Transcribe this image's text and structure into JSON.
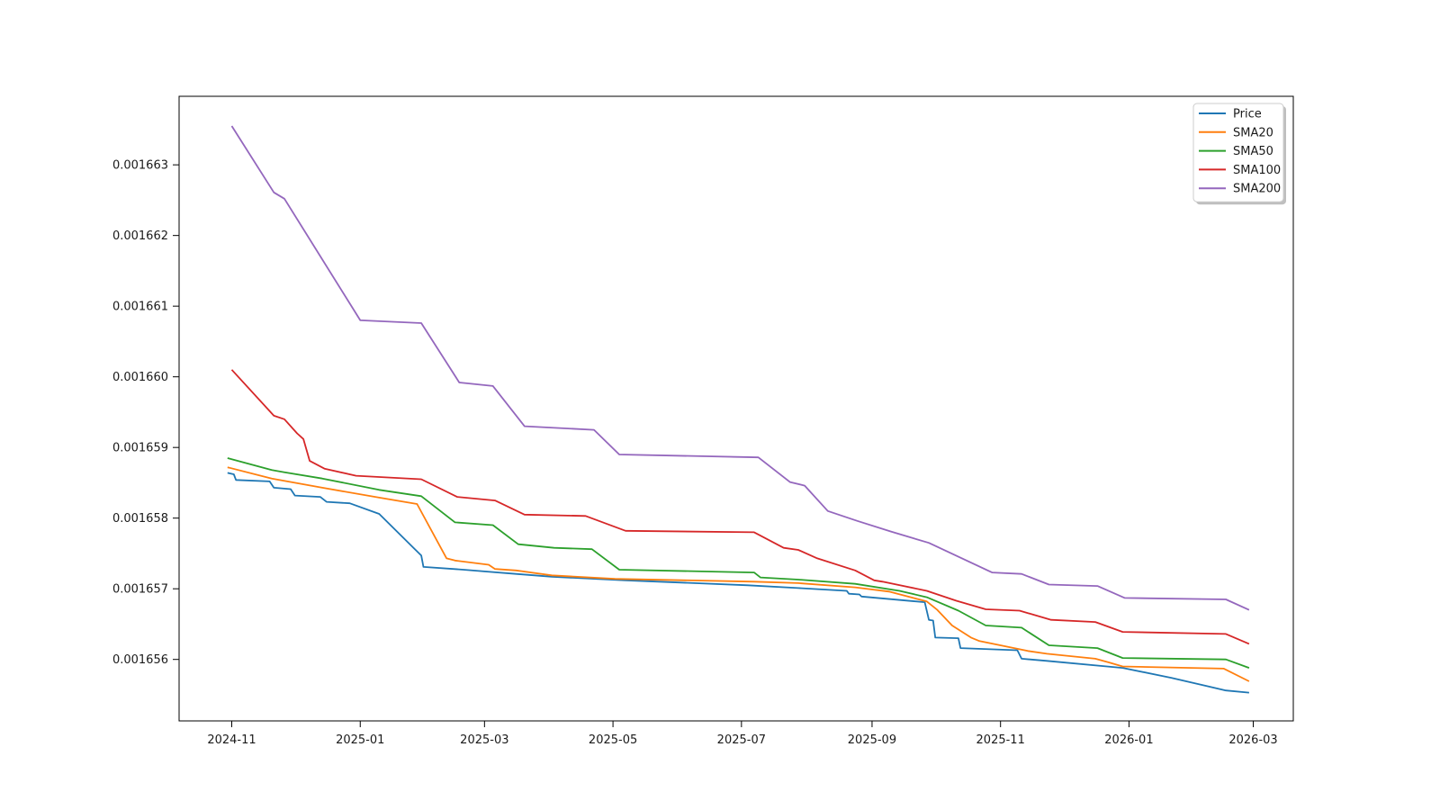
{
  "chart_data": {
    "type": "line",
    "title": "",
    "xlabel": "",
    "ylabel": "",
    "grid": false,
    "x_axis": {
      "range": [
        "2024-10-07",
        "2026-03-20"
      ],
      "tick_dates": [
        "2024-11-01",
        "2025-01-01",
        "2025-03-01",
        "2025-05-01",
        "2025-07-01",
        "2025-09-01",
        "2025-11-01",
        "2026-01-01",
        "2026-03-01"
      ],
      "tick_labels": [
        "2024-11",
        "2025-01",
        "2025-03",
        "2025-05",
        "2025-07",
        "2025-09",
        "2025-11",
        "2026-01",
        "2026-03"
      ]
    },
    "y_axis": {
      "range": [
        0.00165513,
        0.00166397
      ],
      "ticks": [
        0.001656,
        0.001657,
        0.001658,
        0.001659,
        0.00166,
        0.001661,
        0.001662,
        0.001663
      ],
      "decimals": 6
    },
    "legend": {
      "position": "upper-right",
      "border_color": "#cccccc",
      "shadow": true,
      "entries": [
        "Price",
        "SMA20",
        "SMA50",
        "SMA100",
        "SMA200"
      ]
    },
    "series": [
      {
        "name": "Price",
        "color": "#1f77b4",
        "points": [
          [
            "2024-10-30",
            0.00165864
          ],
          [
            "2024-11-02",
            0.00165862
          ],
          [
            "2024-11-03",
            0.00165854
          ],
          [
            "2024-11-19",
            0.00165852
          ],
          [
            "2024-11-21",
            0.00165843
          ],
          [
            "2024-11-29",
            0.00165841
          ],
          [
            "2024-12-01",
            0.00165832
          ],
          [
            "2024-12-13",
            0.0016583
          ],
          [
            "2024-12-16",
            0.00165823
          ],
          [
            "2024-12-27",
            0.00165821
          ],
          [
            "2025-01-10",
            0.00165806
          ],
          [
            "2025-01-28",
            0.00165753
          ],
          [
            "2025-01-30",
            0.00165747
          ],
          [
            "2025-01-31",
            0.00165731
          ],
          [
            "2025-02-19",
            0.00165727
          ],
          [
            "2025-03-16",
            0.00165721
          ],
          [
            "2025-04-02",
            0.00165717
          ],
          [
            "2025-05-07",
            0.00165712
          ],
          [
            "2025-07-04",
            0.00165705
          ],
          [
            "2025-07-28",
            0.00165701
          ],
          [
            "2025-08-20",
            0.00165697
          ],
          [
            "2025-08-21",
            0.00165693
          ],
          [
            "2025-08-26",
            0.00165692
          ],
          [
            "2025-08-27",
            0.00165689
          ],
          [
            "2025-09-26",
            0.00165681
          ],
          [
            "2025-09-28",
            0.00165656
          ],
          [
            "2025-09-30",
            0.00165655
          ],
          [
            "2025-10-01",
            0.00165631
          ],
          [
            "2025-10-12",
            0.0016563
          ],
          [
            "2025-10-13",
            0.00165616
          ],
          [
            "2025-11-09",
            0.00165613
          ],
          [
            "2025-11-11",
            0.00165601
          ],
          [
            "2025-11-23",
            0.00165598
          ],
          [
            "2025-12-29",
            0.00165588
          ],
          [
            "2026-01-21",
            0.00165574
          ],
          [
            "2026-02-16",
            0.00165556
          ],
          [
            "2026-02-27",
            0.00165553
          ]
        ]
      },
      {
        "name": "SMA20",
        "color": "#ff7f0e",
        "points": [
          [
            "2024-10-30",
            0.00165872
          ],
          [
            "2024-11-20",
            0.00165856
          ],
          [
            "2024-12-14",
            0.00165843
          ],
          [
            "2025-01-10",
            0.00165829
          ],
          [
            "2025-01-28",
            0.0016582
          ],
          [
            "2025-02-11",
            0.00165743
          ],
          [
            "2025-02-15",
            0.0016574
          ],
          [
            "2025-03-03",
            0.00165734
          ],
          [
            "2025-03-06",
            0.00165728
          ],
          [
            "2025-03-16",
            0.00165726
          ],
          [
            "2025-04-02",
            0.00165719
          ],
          [
            "2025-05-02",
            0.00165714
          ],
          [
            "2025-07-07",
            0.0016571
          ],
          [
            "2025-07-28",
            0.00165708
          ],
          [
            "2025-08-24",
            0.00165702
          ],
          [
            "2025-09-09",
            0.00165696
          ],
          [
            "2025-09-27",
            0.00165682
          ],
          [
            "2025-10-02",
            0.0016567
          ],
          [
            "2025-10-09",
            0.00165648
          ],
          [
            "2025-10-18",
            0.00165631
          ],
          [
            "2025-10-22",
            0.00165626
          ],
          [
            "2025-11-14",
            0.00165612
          ],
          [
            "2025-11-23",
            0.00165608
          ],
          [
            "2025-12-16",
            0.00165601
          ],
          [
            "2025-12-22",
            0.00165596
          ],
          [
            "2025-12-29",
            0.0016559
          ],
          [
            "2026-02-15",
            0.00165587
          ],
          [
            "2026-02-27",
            0.00165569
          ]
        ]
      },
      {
        "name": "SMA50",
        "color": "#2ca02c",
        "points": [
          [
            "2024-10-30",
            0.00165885
          ],
          [
            "2024-11-20",
            0.00165868
          ],
          [
            "2024-11-26",
            0.00165865
          ],
          [
            "2024-12-14",
            0.00165856
          ],
          [
            "2025-01-10",
            0.0016584
          ],
          [
            "2025-01-30",
            0.00165831
          ],
          [
            "2025-02-15",
            0.00165794
          ],
          [
            "2025-03-05",
            0.0016579
          ],
          [
            "2025-03-17",
            0.00165763
          ],
          [
            "2025-04-03",
            0.00165758
          ],
          [
            "2025-04-21",
            0.00165756
          ],
          [
            "2025-05-04",
            0.00165727
          ],
          [
            "2025-07-07",
            0.00165723
          ],
          [
            "2025-07-10",
            0.00165716
          ],
          [
            "2025-07-28",
            0.00165713
          ],
          [
            "2025-08-24",
            0.00165707
          ],
          [
            "2025-09-14",
            0.00165697
          ],
          [
            "2025-09-27",
            0.00165688
          ],
          [
            "2025-10-12",
            0.00165669
          ],
          [
            "2025-10-25",
            0.00165648
          ],
          [
            "2025-11-11",
            0.00165645
          ],
          [
            "2025-11-24",
            0.0016562
          ],
          [
            "2025-12-17",
            0.00165616
          ],
          [
            "2025-12-29",
            0.00165602
          ],
          [
            "2026-02-16",
            0.001656
          ],
          [
            "2026-02-27",
            0.00165588
          ]
        ]
      },
      {
        "name": "SMA100",
        "color": "#d62728",
        "points": [
          [
            "2024-11-01",
            0.0016601
          ],
          [
            "2024-11-21",
            0.00165945
          ],
          [
            "2024-11-26",
            0.0016594
          ],
          [
            "2024-12-02",
            0.0016592
          ],
          [
            "2024-12-05",
            0.00165912
          ],
          [
            "2024-12-08",
            0.00165881
          ],
          [
            "2024-12-15",
            0.0016587
          ],
          [
            "2024-12-30",
            0.0016586
          ],
          [
            "2025-01-30",
            0.00165855
          ],
          [
            "2025-02-16",
            0.0016583
          ],
          [
            "2025-03-06",
            0.00165825
          ],
          [
            "2025-03-20",
            0.00165805
          ],
          [
            "2025-04-18",
            0.00165803
          ],
          [
            "2025-05-07",
            0.00165782
          ],
          [
            "2025-07-07",
            0.0016578
          ],
          [
            "2025-07-21",
            0.00165758
          ],
          [
            "2025-07-28",
            0.00165755
          ],
          [
            "2025-08-06",
            0.00165743
          ],
          [
            "2025-08-24",
            0.00165726
          ],
          [
            "2025-09-02",
            0.00165712
          ],
          [
            "2025-09-06",
            0.0016571
          ],
          [
            "2025-09-27",
            0.00165697
          ],
          [
            "2025-10-11",
            0.00165683
          ],
          [
            "2025-10-25",
            0.00165671
          ],
          [
            "2025-11-10",
            0.00165669
          ],
          [
            "2025-11-25",
            0.00165656
          ],
          [
            "2025-12-16",
            0.00165653
          ],
          [
            "2025-12-29",
            0.00165639
          ],
          [
            "2026-02-16",
            0.00165636
          ],
          [
            "2026-02-27",
            0.00165622
          ]
        ]
      },
      {
        "name": "SMA200",
        "color": "#9467bd",
        "points": [
          [
            "2024-11-01",
            0.00166355
          ],
          [
            "2024-11-21",
            0.00166261
          ],
          [
            "2024-11-26",
            0.00166252
          ],
          [
            "2025-01-01",
            0.0016608
          ],
          [
            "2025-01-30",
            0.00166076
          ],
          [
            "2025-02-17",
            0.00165992
          ],
          [
            "2025-03-05",
            0.00165987
          ],
          [
            "2025-03-20",
            0.0016593
          ],
          [
            "2025-04-22",
            0.00165925
          ],
          [
            "2025-05-04",
            0.0016589
          ],
          [
            "2025-07-09",
            0.00165886
          ],
          [
            "2025-07-24",
            0.00165851
          ],
          [
            "2025-07-31",
            0.00165846
          ],
          [
            "2025-08-11",
            0.0016581
          ],
          [
            "2025-08-25",
            0.00165796
          ],
          [
            "2025-09-10",
            0.00165781
          ],
          [
            "2025-09-28",
            0.00165765
          ],
          [
            "2025-10-28",
            0.00165723
          ],
          [
            "2025-11-11",
            0.00165721
          ],
          [
            "2025-11-24",
            0.00165706
          ],
          [
            "2025-12-17",
            0.00165704
          ],
          [
            "2025-12-30",
            0.00165687
          ],
          [
            "2026-02-16",
            0.00165685
          ],
          [
            "2026-02-27",
            0.0016567
          ]
        ]
      }
    ]
  }
}
